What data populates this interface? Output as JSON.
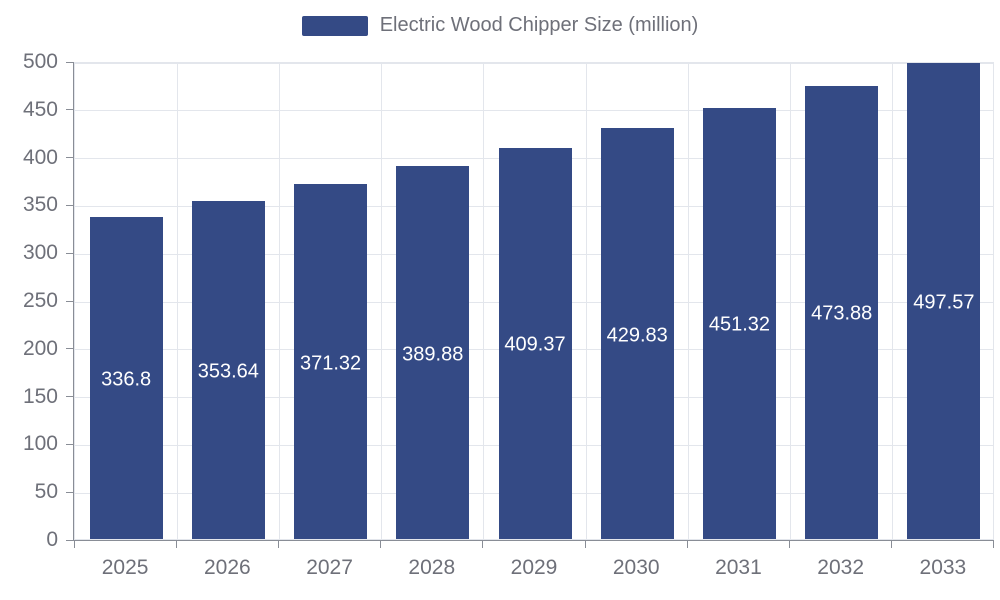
{
  "legend": {
    "label": "Electric Wood Chipper Size (million)"
  },
  "chart_data": {
    "type": "bar",
    "title": "",
    "categories": [
      "2025",
      "2026",
      "2027",
      "2028",
      "2029",
      "2030",
      "2031",
      "2032",
      "2033"
    ],
    "series": [
      {
        "name": "Electric Wood Chipper Size (million)",
        "values": [
          336.8,
          353.64,
          371.32,
          389.88,
          409.37,
          429.83,
          451.32,
          473.88,
          497.57
        ]
      }
    ],
    "data_labels": [
      "336.8",
      "353.64",
      "371.32",
      "389.88",
      "409.37",
      "429.83",
      "451.32",
      "473.88",
      "497.57"
    ],
    "xlabel": "",
    "ylabel": "",
    "ylim": [
      0,
      500
    ],
    "yticks": [
      0,
      50,
      100,
      150,
      200,
      250,
      300,
      350,
      400,
      450,
      500
    ],
    "grid": true,
    "legend_position": "top-center",
    "colors": {
      "bar": "#344A85",
      "data_label_text": "#FFFFFF",
      "axis_text": "#6E7079",
      "legend_text": "#6E7079",
      "gridline": "#E3E6EC",
      "axis_line": "#898D96",
      "background": "#FFFFFF"
    }
  }
}
